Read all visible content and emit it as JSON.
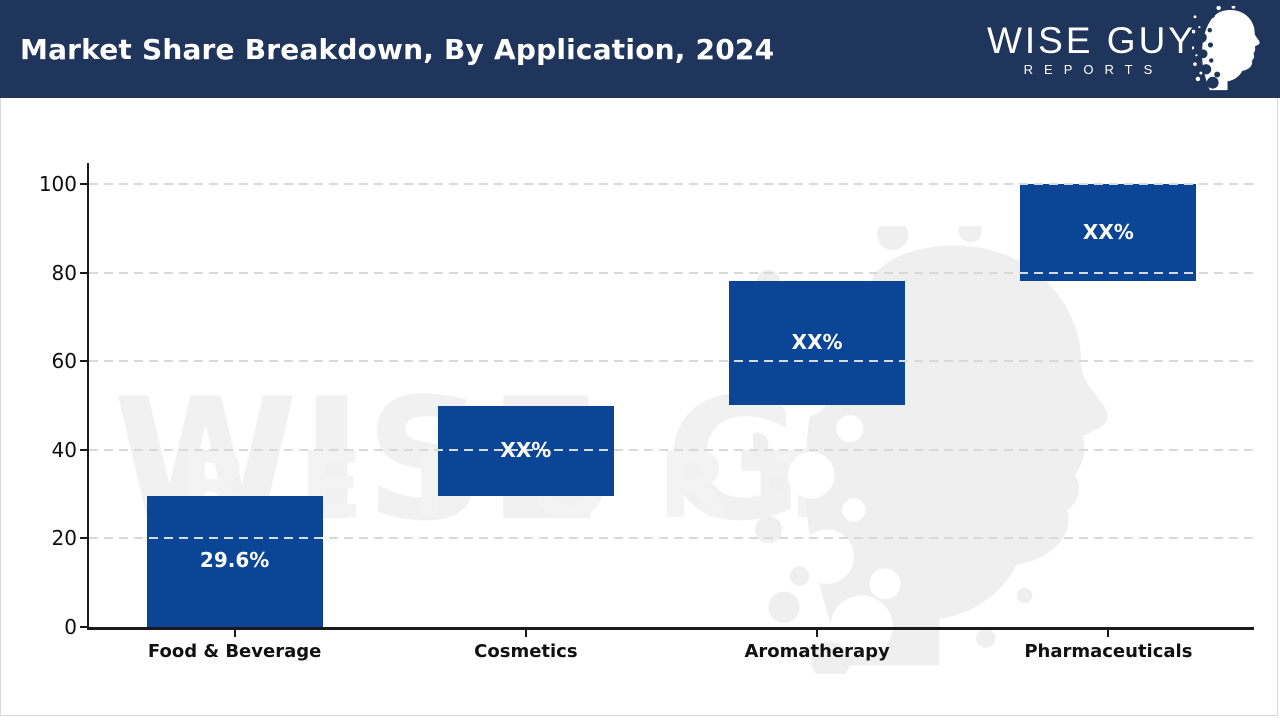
{
  "header": {
    "title": "Market Share Breakdown, By Application, 2024",
    "logo": {
      "wordmark": "WISE GUY",
      "subtext": "REPORTS"
    }
  },
  "watermark": {
    "wordmark": "WISE GUY",
    "subtext": "REPORTS"
  },
  "chart_data": {
    "type": "bar",
    "subtype": "waterfall",
    "title": "Market Share Breakdown, By Application, 2024",
    "categories": [
      "Food & Beverage",
      "Cosmetics",
      "Aromatherapy",
      "Pharmaceuticals"
    ],
    "bars": [
      {
        "category": "Food & Beverage",
        "start": 0,
        "end": 29.6,
        "label": "29.6%"
      },
      {
        "category": "Cosmetics",
        "start": 29.6,
        "end": 50,
        "label": "XX%"
      },
      {
        "category": "Aromatherapy",
        "start": 50,
        "end": 78,
        "label": "XX%"
      },
      {
        "category": "Pharmaceuticals",
        "start": 78,
        "end": 100,
        "label": "XX%"
      }
    ],
    "ylim": [
      0,
      100
    ],
    "yticks": [
      0,
      20,
      40,
      60,
      80,
      100
    ],
    "xlabel": "",
    "ylabel": "",
    "legend": "none",
    "grid": "dashed-horizontal",
    "bar_color": "#0b4596",
    "bar_label_color": "#ffffff",
    "axis_color": "#1a1a1a",
    "gridline_color": "#d9d9d9",
    "header_color": "#1f355c"
  }
}
